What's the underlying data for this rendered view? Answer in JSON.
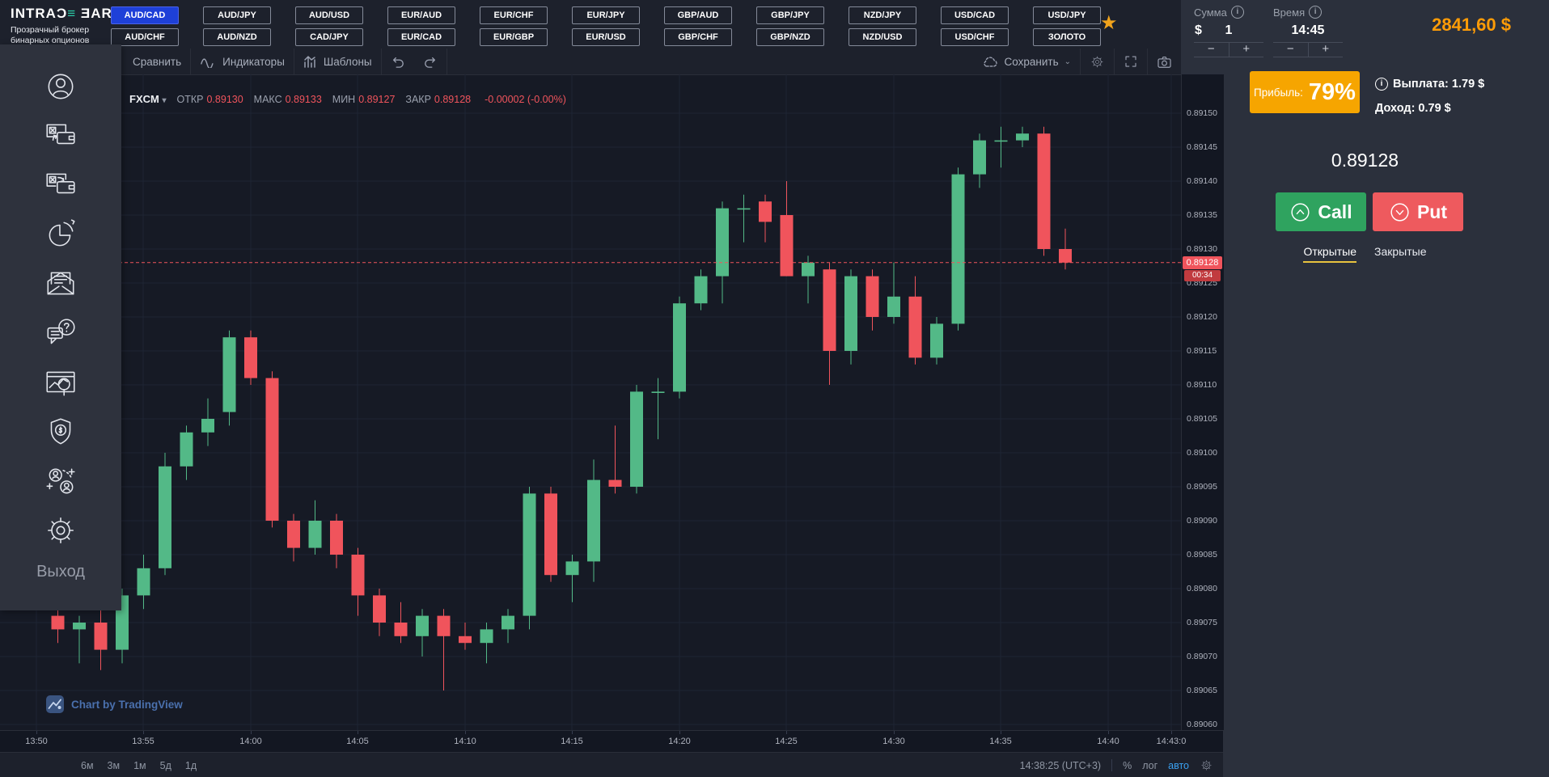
{
  "topbar": {
    "logo": {
      "t1": "INTRA",
      "t2": "Ɔ",
      "t3": "≡",
      "t4": " ƎAR",
      "subtitle1": "Прозрачный брокер",
      "subtitle2": "бинарных опционов"
    },
    "pairs_row1": [
      "AUD/CAD",
      "AUD/JPY",
      "AUD/USD",
      "EUR/AUD",
      "EUR/CHF",
      "EUR/JPY",
      "GBP/AUD",
      "GBP/JPY",
      "NZD/JPY",
      "USD/CAD",
      "USD/JPY"
    ],
    "pairs_row2": [
      "AUD/CHF",
      "AUD/NZD",
      "CAD/JPY",
      "EUR/CAD",
      "EUR/GBP",
      "EUR/USD",
      "GBP/CHF",
      "GBP/NZD",
      "NZD/USD",
      "USD/CHF",
      "ЗОЛОТО"
    ],
    "selected_pair": "AUD/CAD",
    "amount": {
      "label": "Сумма",
      "currency": "$",
      "value": "1",
      "minus": "−",
      "plus": "+"
    },
    "expiry": {
      "label": "Время",
      "value": "14:45",
      "minus": "−",
      "plus": "+"
    },
    "balance": "2841,60 $"
  },
  "sidebar": {
    "items": [
      "profile",
      "deposit",
      "withdrawal",
      "statistics",
      "mail",
      "support",
      "analytics",
      "guarantees",
      "referral",
      "settings"
    ],
    "exit_label": "Выход"
  },
  "chart_toolbar": {
    "compare": "Сравнить",
    "indicators": "Индикаторы",
    "templates": "Шаблоны",
    "save": "Сохранить"
  },
  "symbol_info": {
    "symbol": "FXCM",
    "open_label": "ОТКР",
    "open": "0.89130",
    "high_label": "МАКС",
    "high": "0.89133",
    "low_label": "МИН",
    "low": "0.89127",
    "close_label": "ЗАКР",
    "close": "0.89128",
    "change": "-0.00002 (-0.00%)"
  },
  "chart_data": {
    "type": "candlestick",
    "symbol": "AUD/CAD",
    "timeframe_minutes": 1,
    "price_ticks": [
      0.8915,
      0.89145,
      0.8914,
      0.89135,
      0.8913,
      0.89125,
      0.8912,
      0.89115,
      0.8911,
      0.89105,
      0.891,
      0.89095,
      0.8909,
      0.89085,
      0.8908,
      0.89075,
      0.8907,
      0.89065,
      0.8906
    ],
    "time_ticks": [
      [
        "13:50",
        45
      ],
      [
        "13:55",
        177
      ],
      [
        "14:00",
        310
      ],
      [
        "14:05",
        442
      ],
      [
        "14:10",
        575
      ],
      [
        "14:15",
        707
      ],
      [
        "14:20",
        840
      ],
      [
        "14:25",
        972
      ],
      [
        "14:30",
        1105
      ],
      [
        "14:35",
        1237
      ],
      [
        "14:40",
        1370
      ],
      [
        "14:43:0",
        1448
      ]
    ],
    "candles": [
      [
        "13:51",
        0.89076,
        0.89078,
        0.89072,
        0.89074
      ],
      [
        "13:52",
        0.89074,
        0.89076,
        0.89069,
        0.89075
      ],
      [
        "13:53",
        0.89075,
        0.89079,
        0.89068,
        0.89071
      ],
      [
        "13:54",
        0.89071,
        0.8908,
        0.89069,
        0.89079
      ],
      [
        "13:55",
        0.89079,
        0.89085,
        0.89077,
        0.89083
      ],
      [
        "13:56",
        0.89083,
        0.891,
        0.89082,
        0.89098
      ],
      [
        "13:57",
        0.89098,
        0.89104,
        0.89096,
        0.89103
      ],
      [
        "13:58",
        0.89103,
        0.89108,
        0.89101,
        0.89105
      ],
      [
        "13:59",
        0.89106,
        0.89118,
        0.89104,
        0.89117
      ],
      [
        "14:00",
        0.89117,
        0.89118,
        0.8911,
        0.89111
      ],
      [
        "14:01",
        0.89111,
        0.89112,
        0.89089,
        0.8909
      ],
      [
        "14:02",
        0.8909,
        0.89091,
        0.89084,
        0.89086
      ],
      [
        "14:03",
        0.89086,
        0.89093,
        0.89085,
        0.8909
      ],
      [
        "14:04",
        0.8909,
        0.89091,
        0.89083,
        0.89085
      ],
      [
        "14:05",
        0.89085,
        0.89086,
        0.89076,
        0.89079
      ],
      [
        "14:06",
        0.89079,
        0.8908,
        0.89073,
        0.89075
      ],
      [
        "14:07",
        0.89075,
        0.89078,
        0.89072,
        0.89073
      ],
      [
        "14:08",
        0.89073,
        0.89077,
        0.8907,
        0.89076
      ],
      [
        "14:09",
        0.89076,
        0.89077,
        0.89065,
        0.89073
      ],
      [
        "14:10",
        0.89073,
        0.89075,
        0.89071,
        0.89072
      ],
      [
        "14:11",
        0.89072,
        0.89075,
        0.89069,
        0.89074
      ],
      [
        "14:12",
        0.89074,
        0.89077,
        0.89072,
        0.89076
      ],
      [
        "14:13",
        0.89076,
        0.89095,
        0.89074,
        0.89094
      ],
      [
        "14:14",
        0.89094,
        0.89095,
        0.89081,
        0.89082
      ],
      [
        "14:15",
        0.89082,
        0.89085,
        0.89078,
        0.89084
      ],
      [
        "14:16",
        0.89084,
        0.89099,
        0.89081,
        0.89096
      ],
      [
        "14:17",
        0.89096,
        0.89104,
        0.89094,
        0.89095
      ],
      [
        "14:18",
        0.89095,
        0.8911,
        0.89094,
        0.89109
      ],
      [
        "14:19",
        0.89109,
        0.89111,
        0.89102,
        0.89109
      ],
      [
        "14:20",
        0.89109,
        0.89123,
        0.89108,
        0.89122
      ],
      [
        "14:21",
        0.89122,
        0.89127,
        0.89121,
        0.89126
      ],
      [
        "14:22",
        0.89126,
        0.89137,
        0.89122,
        0.89136
      ],
      [
        "14:23",
        0.89136,
        0.89138,
        0.89131,
        0.89136
      ],
      [
        "14:24",
        0.89137,
        0.89138,
        0.89131,
        0.89134
      ],
      [
        "14:25",
        0.89135,
        0.8914,
        0.89126,
        0.89126
      ],
      [
        "14:26",
        0.89126,
        0.89129,
        0.89122,
        0.89128
      ],
      [
        "14:27",
        0.89127,
        0.89128,
        0.8911,
        0.89115
      ],
      [
        "14:28",
        0.89115,
        0.89127,
        0.89113,
        0.89126
      ],
      [
        "14:29",
        0.89126,
        0.89127,
        0.89118,
        0.8912
      ],
      [
        "14:30",
        0.8912,
        0.89128,
        0.89119,
        0.89123
      ],
      [
        "14:31",
        0.89123,
        0.89126,
        0.89113,
        0.89114
      ],
      [
        "14:32",
        0.89114,
        0.8912,
        0.89113,
        0.89119
      ],
      [
        "14:33",
        0.89119,
        0.89142,
        0.89118,
        0.89141
      ],
      [
        "14:34",
        0.89141,
        0.89147,
        0.89139,
        0.89146
      ],
      [
        "14:35",
        0.89146,
        0.89148,
        0.89142,
        0.89146
      ],
      [
        "14:36",
        0.89146,
        0.89148,
        0.89145,
        0.89147
      ],
      [
        "14:37",
        0.89147,
        0.89148,
        0.89129,
        0.8913
      ],
      [
        "14:38",
        0.8913,
        0.89133,
        0.89127,
        0.89128
      ]
    ],
    "current_price": 0.89128,
    "current_price_label": "0.89128",
    "countdown": "00:34",
    "watermark": "Chart by TradingView",
    "colors": {
      "up": "#53b987",
      "down": "#f0545c",
      "grid": "#1e2434",
      "dashed_line": "#f0545c"
    }
  },
  "bottom_toolbar": {
    "intervals": [
      "6м",
      "3м",
      "1м",
      "5д",
      "1д"
    ],
    "clock": "14:38:25 (UTC+3)",
    "percent": "%",
    "log": "лог",
    "auto": "авто"
  },
  "trade_panel": {
    "profit_label": "Прибыль:",
    "profit_value": "79%",
    "payout": "Выплата: 1.79 $",
    "income": "Доход: 0.79 $",
    "price": "0.89128",
    "call_label": "Call",
    "put_label": "Put",
    "tabs": [
      "Открытые",
      "Закрытые"
    ]
  }
}
